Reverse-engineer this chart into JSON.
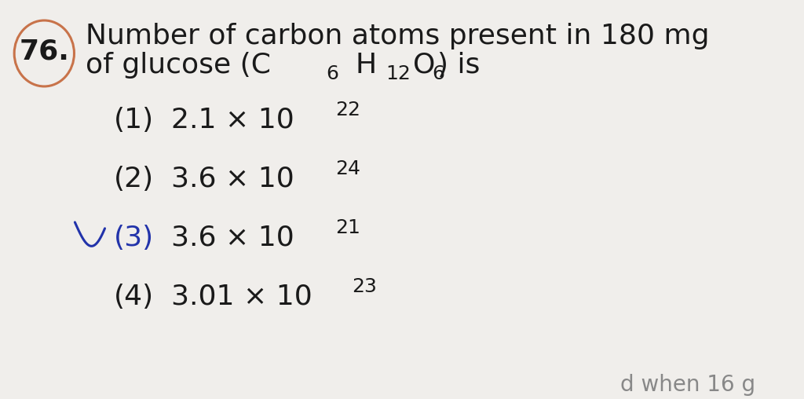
{
  "question_number": "76.",
  "question_line1": "Number of carbon atoms present in 180 mg",
  "question_line2_prefix": "of glucose (C",
  "question_line2_suffix": ") is",
  "formula_parts": [
    "C",
    "6",
    "H",
    "12",
    "O",
    "6"
  ],
  "options": [
    {
      "num": "(1)",
      "mantissa": "2.1",
      "exp": "22"
    },
    {
      "num": "(2)",
      "mantissa": "3.6",
      "exp": "24"
    },
    {
      "num": "(3)",
      "mantissa": "3.6",
      "exp": "21",
      "marked": true
    },
    {
      "num": "(4)",
      "mantissa": "3.01",
      "exp": "23"
    }
  ],
  "background_color": "#f0eeeb",
  "text_color": "#1a1a1a",
  "circle_color": "#c8734a",
  "mark_color": "#2233aa",
  "font_size_question": 26,
  "font_size_options": 26,
  "font_size_sub": 18,
  "font_size_sup": 18,
  "bottom_text": "d when 16 g",
  "bottom_text_color": "#888888"
}
